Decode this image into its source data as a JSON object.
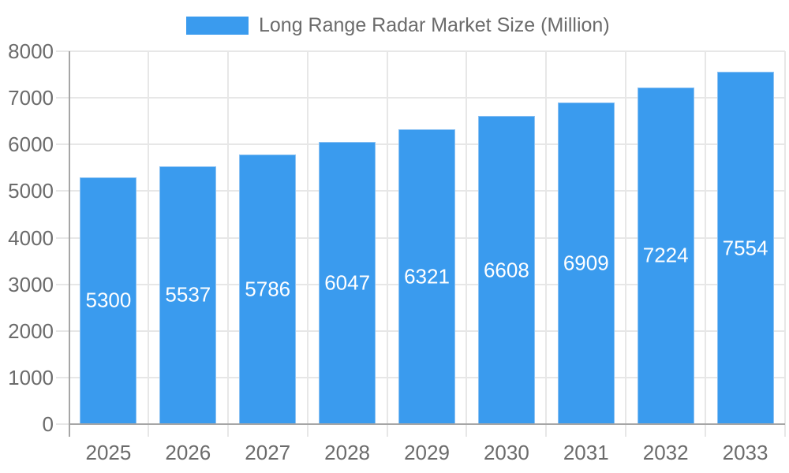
{
  "legend": {
    "label": "Long Range Radar Market Size (Million)"
  },
  "chart_data": {
    "type": "bar",
    "title": "Long Range Radar Market Size (Million)",
    "categories": [
      "2025",
      "2026",
      "2027",
      "2028",
      "2029",
      "2030",
      "2031",
      "2032",
      "2033"
    ],
    "series": [
      {
        "name": "Long Range Radar Market Size (Million)",
        "values": [
          5300,
          5537,
          5786,
          6047,
          6321,
          6608,
          6909,
          7224,
          7554
        ]
      }
    ],
    "value_labels": [
      "5300",
      "5537",
      "5786",
      "6047",
      "6321",
      "6608",
      "6909",
      "7224",
      "7554"
    ],
    "xlabel": "",
    "ylabel": "",
    "ylim": [
      0,
      8000
    ],
    "yticks": [
      0,
      1000,
      2000,
      3000,
      4000,
      5000,
      6000,
      7000,
      8000
    ],
    "grid": true,
    "legend_position": "top",
    "colors": {
      "bar_fill": "#3A9BEE",
      "bar_border": "#8CC2F3",
      "value_label": "#FFFFFF",
      "axis_text": "#6B6B6B",
      "gridline": "#E7E7E7",
      "axis_line": "#A6A6A6",
      "background": "#FFFFFF"
    }
  }
}
